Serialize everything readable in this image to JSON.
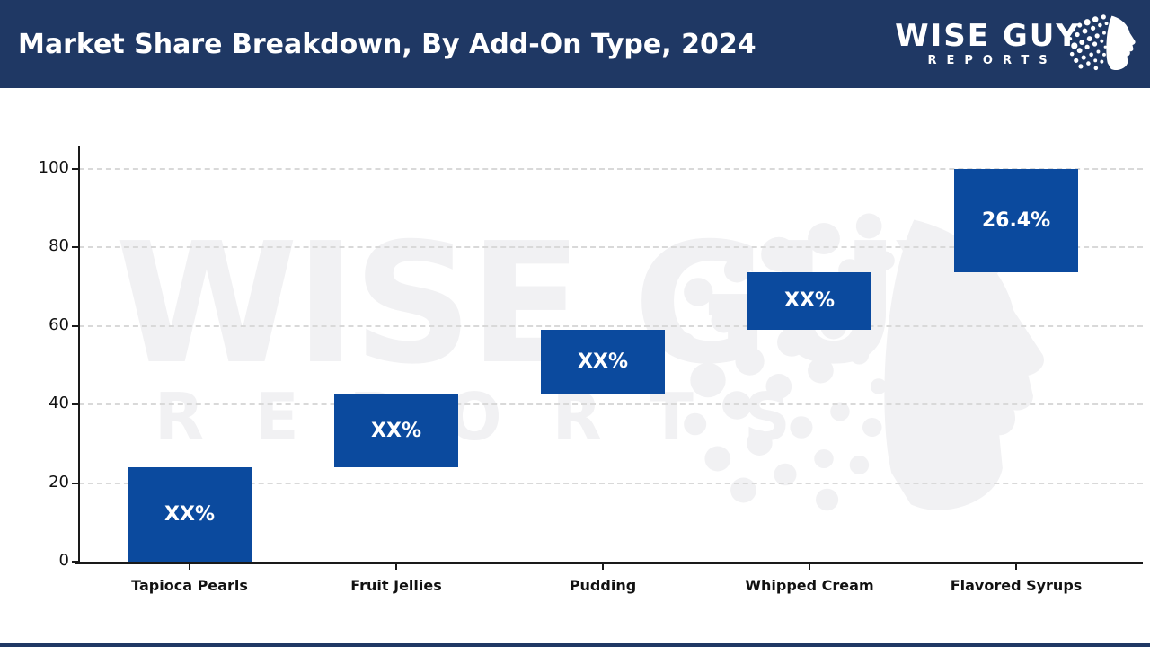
{
  "header": {
    "title": "Market Share Breakdown, By Add-On Type, 2024",
    "bg_color": "#1f3864",
    "logo": {
      "line1": "WISE GUY",
      "line2": "REPORTS"
    }
  },
  "watermark": {
    "line1": "WISE GUY",
    "line2": "REPORTS"
  },
  "footer": {
    "bg_color": "#1f3864"
  },
  "chart_data": {
    "type": "bar",
    "subtype": "waterfall",
    "title": "Market Share Breakdown, By Add-On Type, 2024",
    "categories": [
      "Tapioca Pearls",
      "Fruit Jellies",
      "Pudding",
      "Whipped Cream",
      "Flavored Syrups"
    ],
    "segments": [
      {
        "category": "Tapioca Pearls",
        "start": 0,
        "end": 24,
        "label": "XX%"
      },
      {
        "category": "Fruit Jellies",
        "start": 24,
        "end": 42.5,
        "label": "XX%"
      },
      {
        "category": "Pudding",
        "start": 42.5,
        "end": 59,
        "label": "XX%"
      },
      {
        "category": "Whipped Cream",
        "start": 59,
        "end": 73.6,
        "label": "XX%"
      },
      {
        "category": "Flavored Syrups",
        "start": 73.6,
        "end": 100,
        "label": "26.4%"
      }
    ],
    "yticks": [
      0,
      20,
      40,
      60,
      80,
      100
    ],
    "ylim": [
      0,
      105
    ],
    "bar_color": "#0b4a9e",
    "bar_label_color": "#ffffff",
    "grid": "horizontal dashed",
    "legend": "none"
  }
}
